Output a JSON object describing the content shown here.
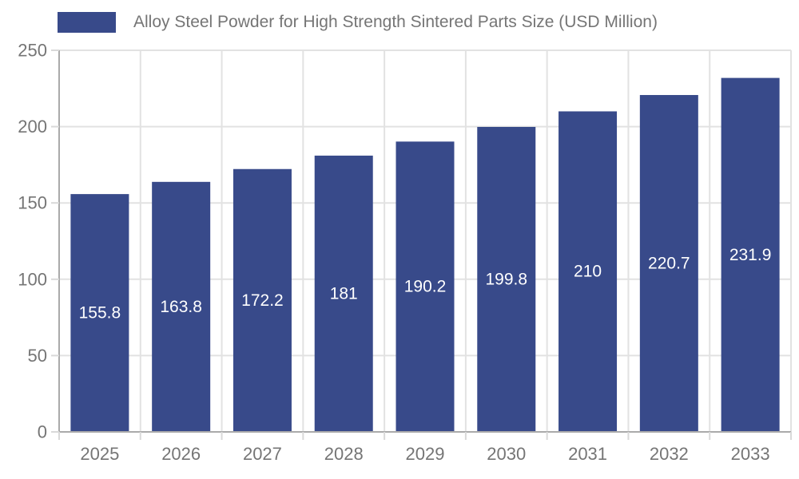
{
  "chart_data": {
    "type": "bar",
    "legend": "Alloy Steel Powder for High Strength Sintered Parts Size (USD Million)",
    "title": "",
    "xlabel": "",
    "ylabel": "",
    "categories": [
      "2025",
      "2026",
      "2027",
      "2028",
      "2029",
      "2030",
      "2031",
      "2032",
      "2033"
    ],
    "values": [
      155.8,
      163.8,
      172.2,
      181,
      190.2,
      199.8,
      210,
      220.7,
      231.9
    ],
    "ylim": [
      0,
      250
    ],
    "yticks": [
      0,
      50,
      100,
      150,
      200,
      250
    ],
    "grid": true,
    "legend_position": "top-left",
    "colors": {
      "bar": "#384A8A",
      "bar_label_text": "#ffffff",
      "axis_text": "#757575",
      "grid_line": "#e2e2e2",
      "axis_line": "#aaaaaa",
      "tick_line": "#d9d9d9",
      "background": "#ffffff"
    }
  }
}
